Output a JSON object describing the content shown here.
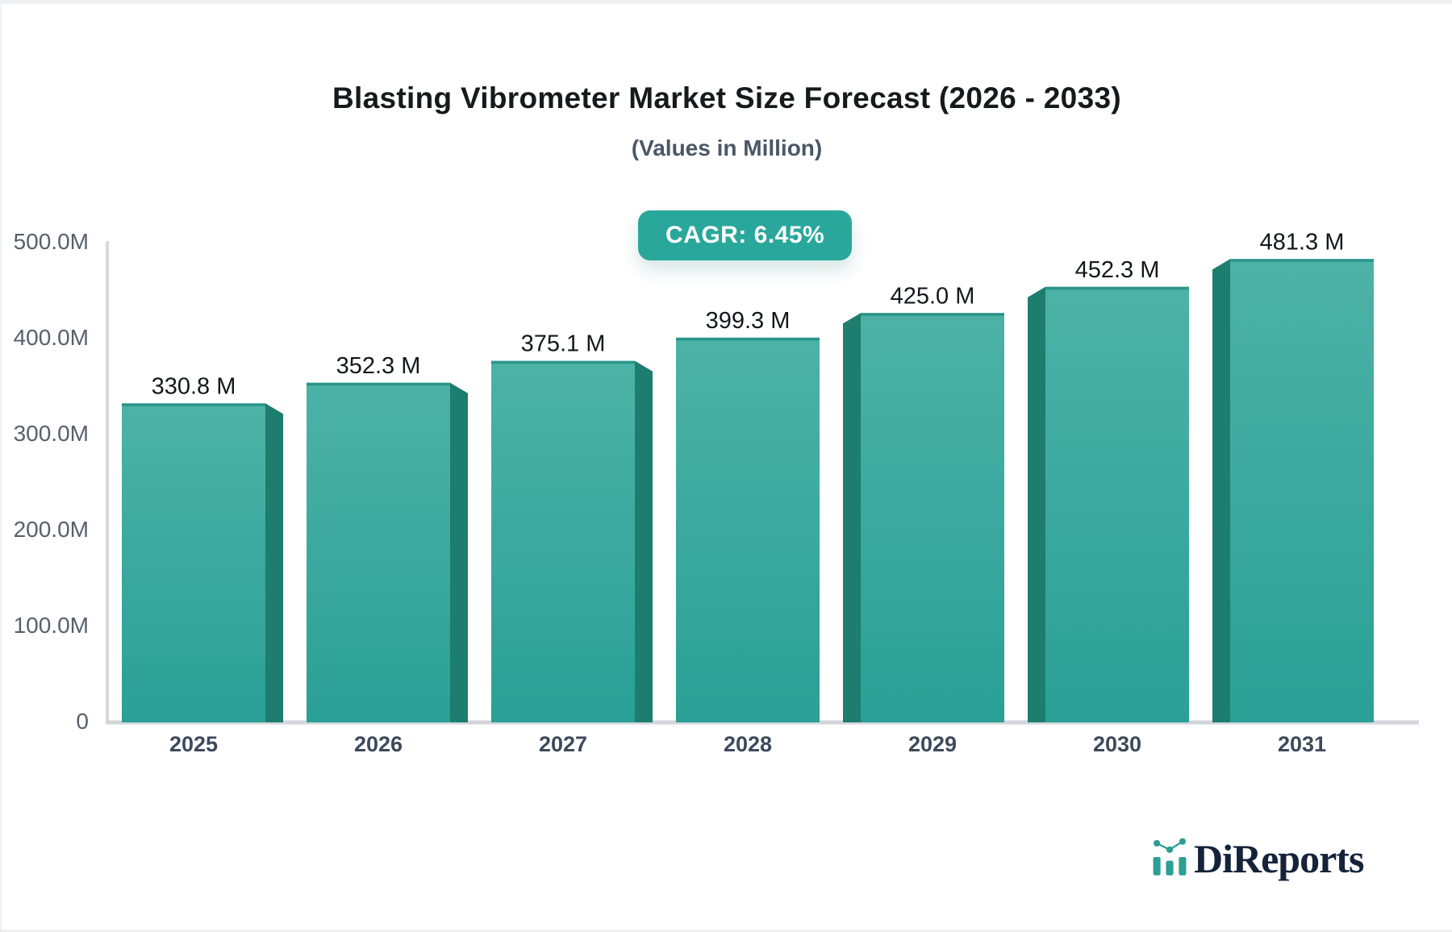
{
  "header": {
    "title": "Blasting Vibrometer Market Size Forecast (2026 - 2033)",
    "subtitle": "(Values in Million)"
  },
  "badge": {
    "label": "CAGR: 6.45%",
    "bg_color": "#2aa79b",
    "text_color": "#ffffff"
  },
  "chart_data": {
    "type": "bar",
    "title": "Blasting Vibrometer Market Size Forecast (2026 - 2033)",
    "subtitle": "(Values in Million)",
    "annotation": "CAGR: 6.45%",
    "categories": [
      "2025",
      "2026",
      "2027",
      "2028",
      "2029",
      "2030",
      "2031"
    ],
    "values": [
      330.8,
      352.3,
      375.1,
      399.3,
      425.0,
      452.3,
      481.3
    ],
    "value_labels": [
      "330.8 M",
      "352.3 M",
      "375.1 M",
      "399.3 M",
      "425.0 M",
      "452.3 M",
      "481.3 M"
    ],
    "unit": "M",
    "xlabel": "",
    "ylabel": "",
    "ylim_millions": [
      0,
      500
    ],
    "y_ticks": [
      {
        "value": 0,
        "label": "0"
      },
      {
        "value": 100,
        "label": "100.0M"
      },
      {
        "value": 200,
        "label": "200.0M"
      },
      {
        "value": 300,
        "label": "300.0M"
      },
      {
        "value": 400,
        "label": "400.0M"
      },
      {
        "value": 500,
        "label": "500.0M"
      }
    ],
    "grid": false,
    "legend": null,
    "colors": {
      "bar_face_top": "#4db2a6",
      "bar_face_bottom": "#2aa096",
      "bar_side": "#1d7d6e",
      "bar_top_stripe": "#2a958a",
      "value_label_text": "#14171c",
      "y_tick_text": "#57606e",
      "x_tick_text": "#3d4a5c",
      "axis_line": "#d8dade",
      "baseline": "#d2d6db",
      "zero_dash": "#98a1ac"
    }
  },
  "logo": {
    "text": "DiReports",
    "icon": "mini-bar-chart-icon",
    "icon_color": "#2d9e94",
    "text_color": "#15233a"
  }
}
